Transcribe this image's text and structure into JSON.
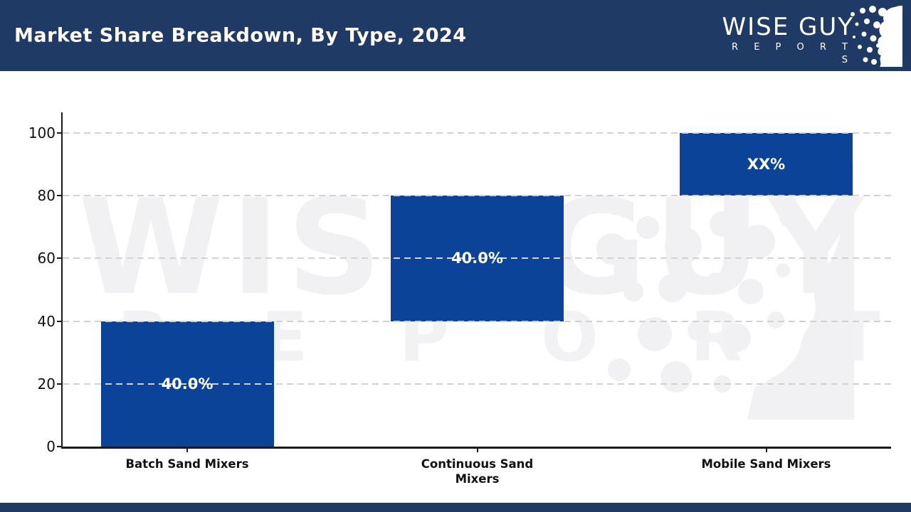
{
  "header": {
    "title": "Market Share Breakdown, By Type, 2024",
    "logo": {
      "line1": "WISE GUY",
      "line2": "R E P O R T S"
    }
  },
  "watermark": {
    "line1": "WISE GUY",
    "line2": "R E P O R T S"
  },
  "chart_data": {
    "type": "bar",
    "subtype": "waterfall-segments",
    "title": "Market Share Breakdown, By Type, 2024",
    "categories": [
      "Batch Sand Mixers",
      "Continuous Sand Mixers",
      "Mobile Sand Mixers"
    ],
    "bars": [
      {
        "category": "Batch Sand Mixers",
        "base": 0,
        "top": 40,
        "value": 40,
        "label": "40.0%"
      },
      {
        "category": "Continuous Sand Mixers",
        "base": 40,
        "top": 80,
        "value": 40,
        "label": "40.0%"
      },
      {
        "category": "Mobile Sand Mixers",
        "base": 80,
        "top": 100,
        "value": 20,
        "label": "XX%"
      }
    ],
    "xlabel": "",
    "ylabel": "",
    "ylim": [
      0,
      100
    ],
    "yticks": [
      0,
      20,
      40,
      60,
      80,
      100
    ],
    "grid": "horizontal-dashed",
    "legend": "none"
  },
  "colors": {
    "header_bg": "#203A66",
    "footer_bg": "#203A66",
    "bar": "#0B4399",
    "bar_label": "#ffffff",
    "grid": "#d2d2d2",
    "axis": "#1a1a1a",
    "watermark": "#f1f1f4"
  }
}
